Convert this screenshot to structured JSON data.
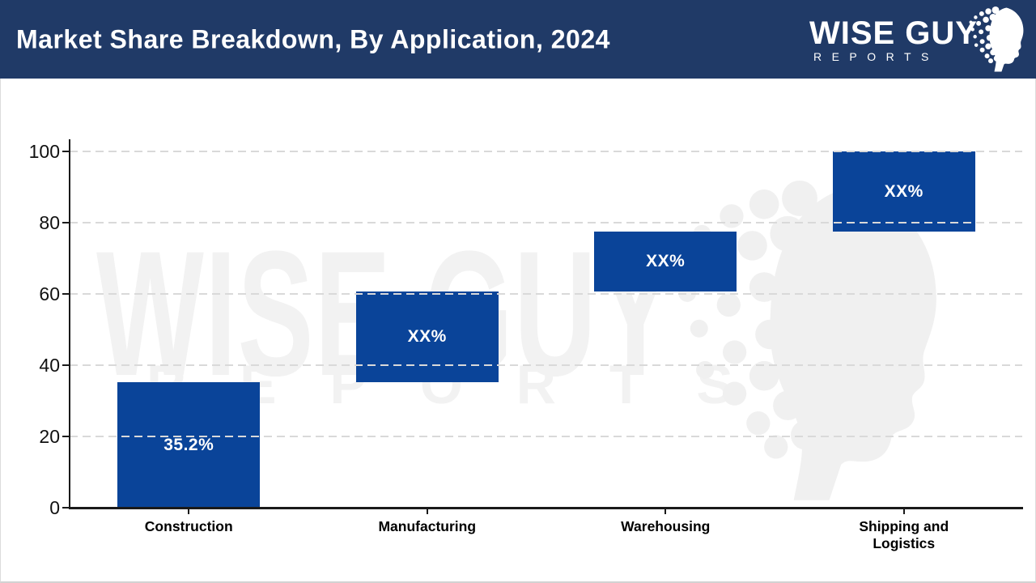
{
  "header": {
    "title": "Market Share Breakdown, By Application, 2024"
  },
  "brand": {
    "name": "WISE GUY",
    "reports": "REPORTS"
  },
  "colors": {
    "header_bg": "#203a67",
    "bar": "#0a4499",
    "grid": "#d9d9d9",
    "axis": "#1a1a1a",
    "watermark": "#f2f2f2"
  },
  "chart_data": {
    "type": "bar",
    "subtype": "waterfall",
    "title": "Market Share Breakdown, By Application, 2024",
    "categories": [
      "Construction",
      "Manufacturing",
      "Warehousing",
      "Shipping and Logistics"
    ],
    "series": [
      {
        "name": "Market Share (%)",
        "segments": [
          {
            "start": 0,
            "end": 35.2,
            "label": "35.2%"
          },
          {
            "start": 35.2,
            "end": 60.6,
            "label": "XX%"
          },
          {
            "start": 60.6,
            "end": 77.5,
            "label": "XX%"
          },
          {
            "start": 77.5,
            "end": 100,
            "label": "XX%"
          }
        ]
      }
    ],
    "xlabel": "",
    "ylabel": "",
    "ylim": [
      0,
      100
    ],
    "yticks": [
      0,
      20,
      40,
      60,
      80,
      100
    ],
    "grid": "horizontal-dashed",
    "legend": "none",
    "bar_color": "#0a4499"
  }
}
